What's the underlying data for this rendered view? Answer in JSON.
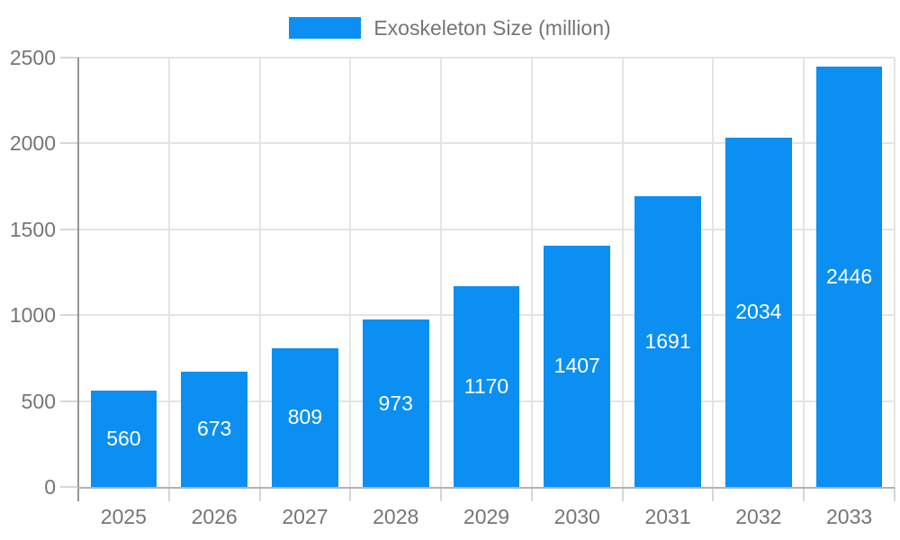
{
  "chart_data": {
    "type": "bar",
    "title": "",
    "legend": "Exoskeleton Size (million)",
    "legend_position": "top",
    "categories": [
      "2025",
      "2026",
      "2027",
      "2028",
      "2029",
      "2030",
      "2031",
      "2032",
      "2033"
    ],
    "series": [
      {
        "name": "Exoskeleton Size (million)",
        "values": [
          560,
          673,
          809,
          973,
          1170,
          1407,
          1691,
          2034,
          2446
        ]
      }
    ],
    "bar_labels_visible": true,
    "xlabel": "",
    "ylabel": "",
    "ylim": [
      0,
      2500
    ],
    "yticks": [
      0,
      500,
      1000,
      1500,
      2000,
      2500
    ],
    "grid": true,
    "colors": {
      "bar": "#0b8ff3",
      "bar_label": "#ffffff",
      "axis_label": "#757575",
      "gridline": "#e4e4e4",
      "y_axis_line": "#969696",
      "x_axis_line": "#b2b2b2",
      "background": "#ffffff"
    }
  }
}
